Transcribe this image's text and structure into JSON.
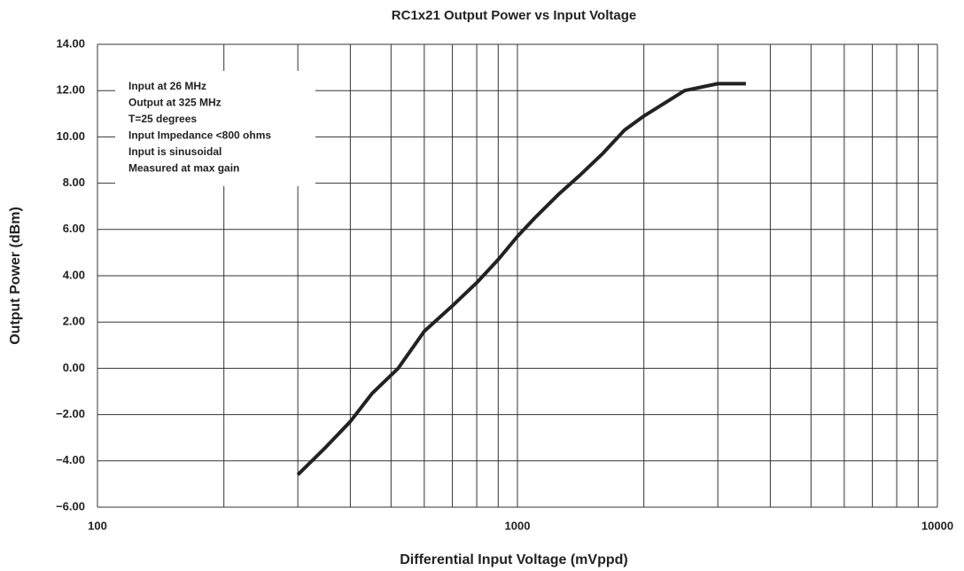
{
  "chart_data": {
    "type": "line",
    "title": "RC1x21 Output Power vs Input Voltage",
    "x_label": "Differential Input Voltage (mVppd)",
    "y_label": "Output Power (dBm)",
    "log_x": true,
    "grid": true,
    "annotation": [
      "Input at 26 MHz",
      "Output at 325 MHz",
      "T=25 degrees",
      "Input Impedance <800 ohms",
      "Input is sinusoidal",
      "Measured at max gain"
    ],
    "x": [
      300,
      350,
      400,
      450,
      500,
      520,
      600,
      700,
      800,
      900,
      1000,
      1100,
      1250,
      1400,
      1600,
      1800,
      2000,
      2500,
      3000,
      3500
    ],
    "series": [
      {
        "name": "Output Power",
        "color": "#222222",
        "values": [
          -4.6,
          -3.4,
          -2.3,
          -1.1,
          -0.3,
          0.0,
          1.6,
          2.7,
          3.7,
          4.7,
          5.7,
          6.5,
          7.5,
          8.3,
          9.3,
          10.3,
          10.9,
          12.0,
          12.3,
          12.3
        ]
      }
    ],
    "xlim": [
      100,
      10000
    ],
    "xticks": [
      100,
      1000,
      10000
    ],
    "x_minor_ticks": [
      200,
      300,
      400,
      500,
      600,
      700,
      800,
      900,
      2000,
      3000,
      4000,
      5000,
      6000,
      7000,
      8000,
      9000
    ],
    "ylim": [
      -6,
      14
    ],
    "yticks": [
      {
        "value": -6,
        "label": "−6.00"
      },
      {
        "value": -4,
        "label": "−4.00"
      },
      {
        "value": -2,
        "label": "−2.00"
      },
      {
        "value": 0,
        "label": "0.00"
      },
      {
        "value": 2,
        "label": "2.00"
      },
      {
        "value": 4,
        "label": "4.00"
      },
      {
        "value": 6,
        "label": "6.00"
      },
      {
        "value": 8,
        "label": "8.00"
      },
      {
        "value": 10,
        "label": "10.00"
      },
      {
        "value": 12,
        "label": "12.00"
      },
      {
        "value": 14,
        "label": "14.00"
      }
    ]
  }
}
